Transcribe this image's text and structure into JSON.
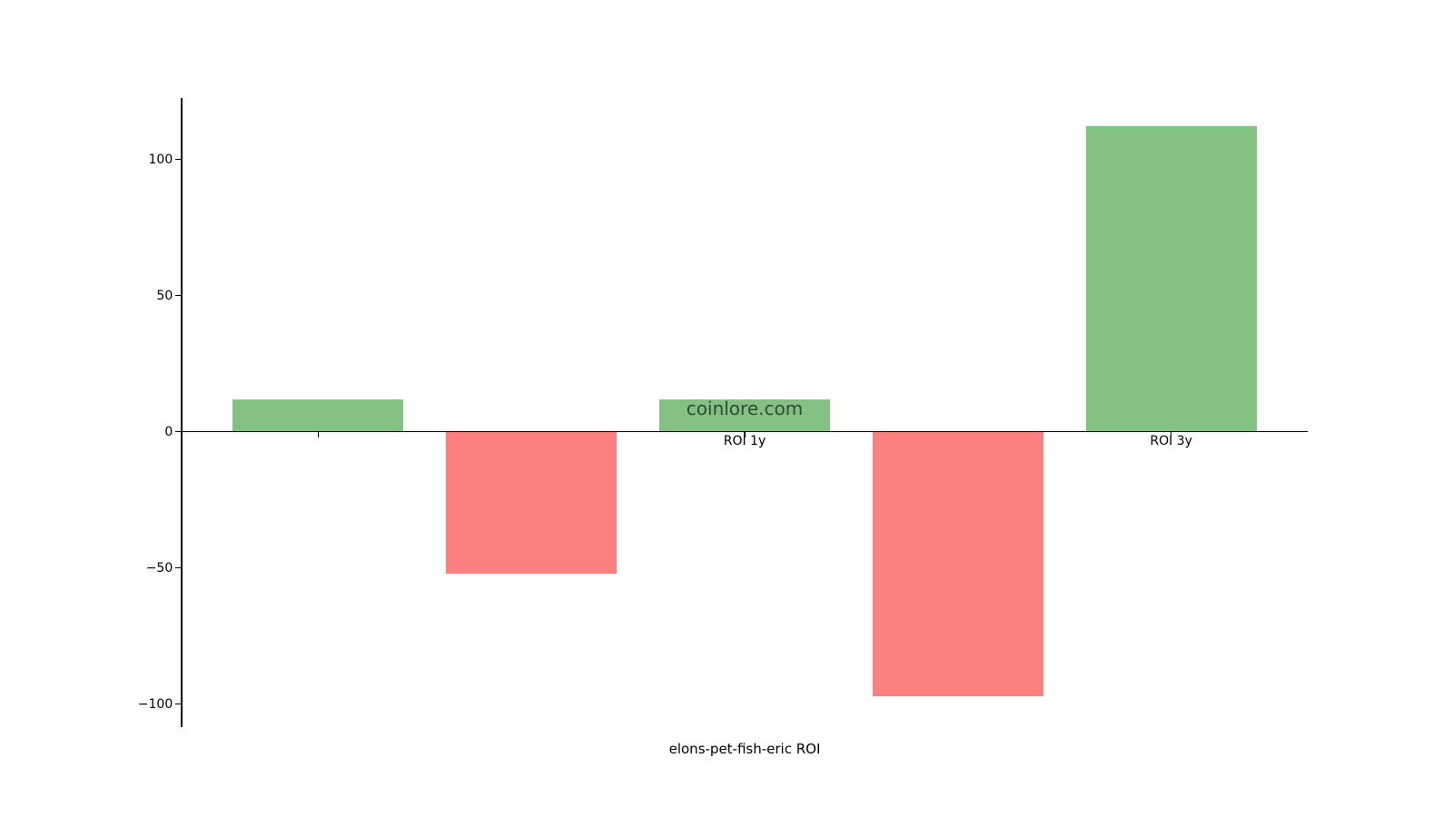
{
  "chart_data": {
    "type": "bar",
    "title": "elons-pet-fish-eric ROI",
    "watermark": "coinlore.com",
    "x": [
      0,
      1,
      2,
      3,
      4
    ],
    "values": [
      11.9,
      -52.2,
      11.7,
      -97.2,
      112.3
    ],
    "bar_width": 0.8,
    "xticks": [
      {
        "pos": 0,
        "label": ""
      },
      {
        "pos": 2,
        "label": "ROI 1y"
      },
      {
        "pos": 4,
        "label": "ROI 3y"
      }
    ],
    "yticks": [
      {
        "value": 100,
        "label": "100"
      },
      {
        "value": 50,
        "label": "50"
      },
      {
        "value": 0,
        "label": "0"
      },
      {
        "value": -50,
        "label": "−50"
      },
      {
        "value": -100,
        "label": "−100"
      }
    ],
    "ylim": [
      -108.5,
      122.5
    ],
    "xlim": [
      -0.64,
      4.64
    ],
    "grid": false,
    "legend": null,
    "colors": {
      "positive": "#82c182",
      "negative": "#fc8080",
      "axis": "#000000",
      "watermark_text": "#2e4a38",
      "background": "#ffffff"
    }
  }
}
